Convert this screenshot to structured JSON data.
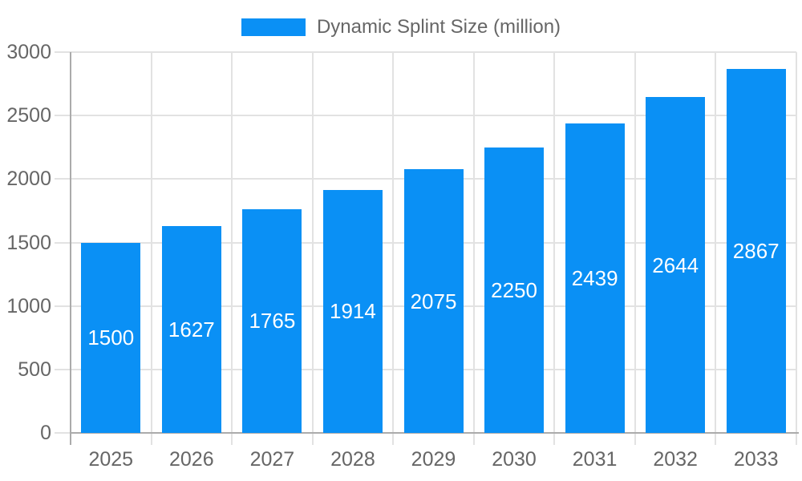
{
  "chart_data": {
    "type": "bar",
    "title": "Dynamic Splint Size (million)",
    "categories": [
      "2025",
      "2026",
      "2027",
      "2028",
      "2029",
      "2030",
      "2031",
      "2032",
      "2033"
    ],
    "series": [
      {
        "name": "Dynamic Splint Size (million)",
        "values": [
          1500,
          1627,
          1765,
          1914,
          2075,
          2250,
          2439,
          2644,
          2867
        ]
      }
    ],
    "xlabel": "",
    "ylabel": "",
    "ylim": [
      0,
      3000
    ],
    "yticks": [
      0,
      500,
      1000,
      1500,
      2000,
      2500,
      3000
    ],
    "grid": true,
    "legend_position": "top-center",
    "value_labels": "inside-center"
  },
  "colors": {
    "bar": "#0A90F5",
    "grid": "#e2e2e2",
    "axis": "#ababab",
    "axis_text": "#666666",
    "legend_text": "#666666",
    "bar_label_text": "#ffffff",
    "background": "#ffffff"
  }
}
